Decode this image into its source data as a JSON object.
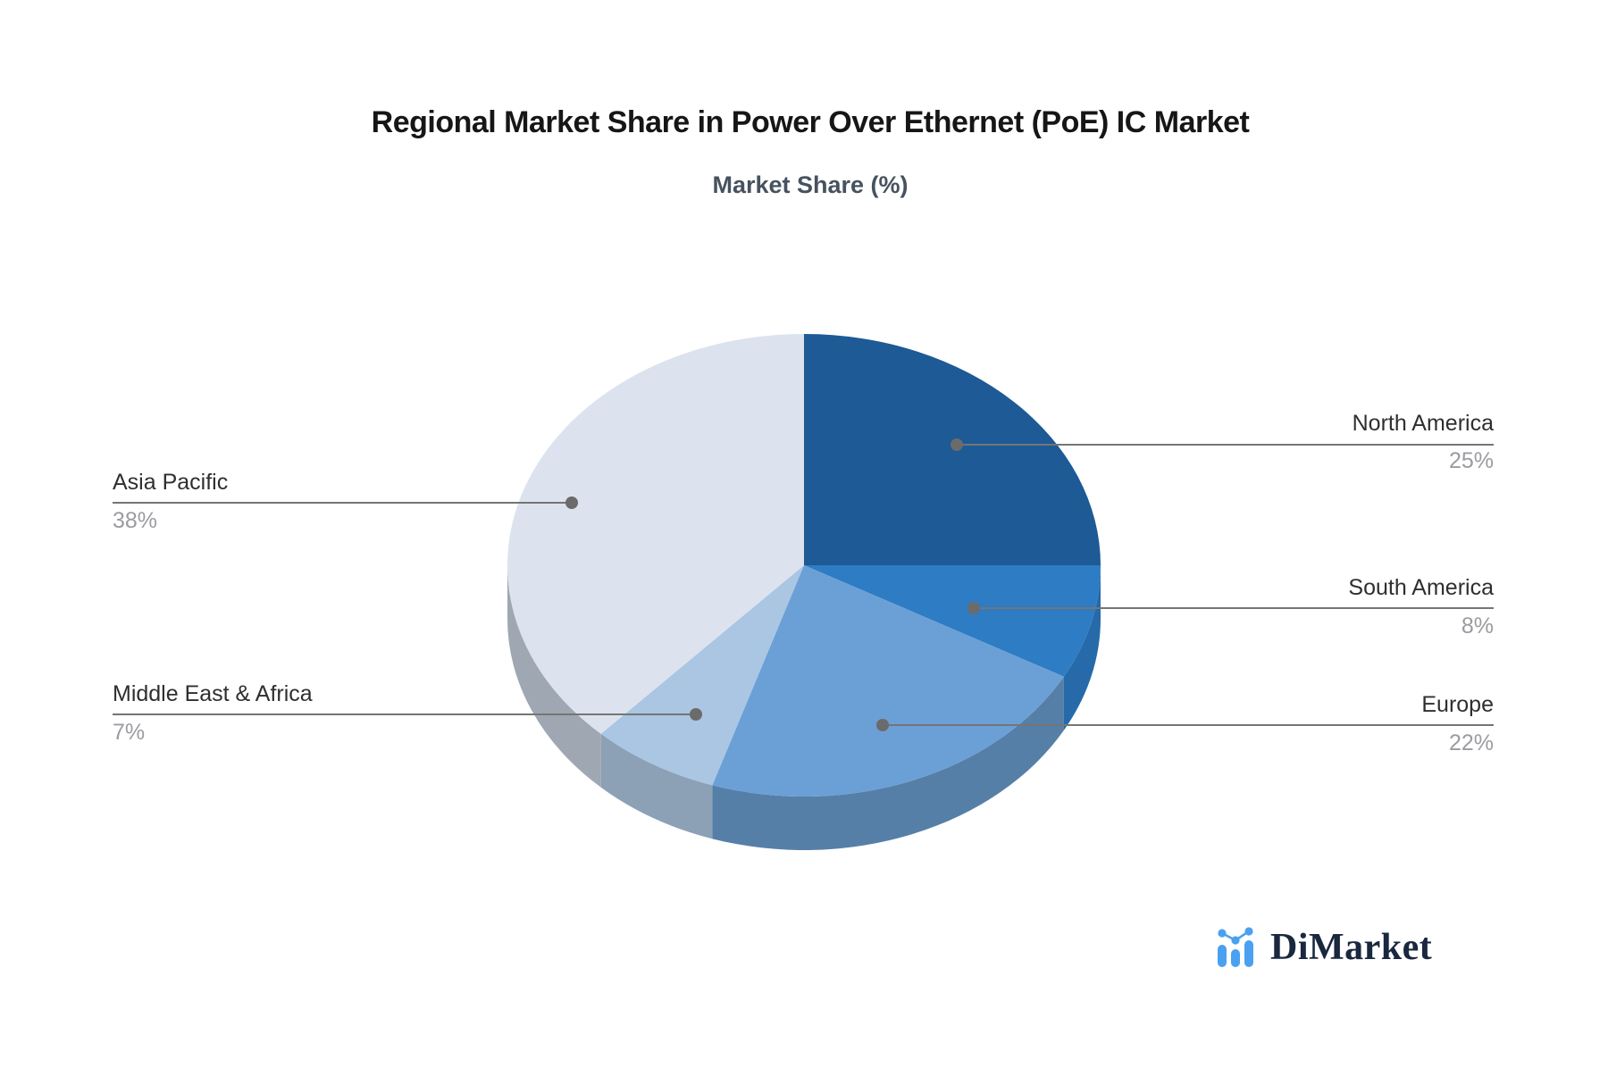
{
  "title": "Regional Market Share in Power Over Ethernet (PoE) IC Market",
  "subtitle": "Market Share (%)",
  "brand": {
    "name": "DiMarket"
  },
  "chart_data": {
    "type": "pie",
    "style": "3d",
    "title": "Regional Market Share in Power Over Ethernet (PoE) IC Market",
    "subtitle": "Market Share (%)",
    "unit": "%",
    "start_angle_deg": -90,
    "direction": "clockwise",
    "legend": "none",
    "categories": [
      "North America",
      "South America",
      "Europe",
      "Middle East & Africa",
      "Asia Pacific"
    ],
    "values": [
      25,
      8,
      22,
      7,
      38
    ],
    "slices": [
      {
        "label": "North America",
        "value": 25,
        "pct_text": "25%",
        "color": "#1d5a96",
        "side_color": "#174a7d"
      },
      {
        "label": "South America",
        "value": 8,
        "pct_text": "8%",
        "color": "#2e7cc4",
        "side_color": "#266aa9"
      },
      {
        "label": "Europe",
        "value": 22,
        "pct_text": "22%",
        "color": "#6ba0d6",
        "side_color": "#567fa7"
      },
      {
        "label": "Middle East & Africa",
        "value": 7,
        "pct_text": "7%",
        "color": "#aac6e2",
        "side_color": "#8ca1b6"
      },
      {
        "label": "Asia Pacific",
        "value": 38,
        "pct_text": "38%",
        "color": "#dce3ee",
        "side_color": "#9fa8b2"
      }
    ],
    "callout_line_color": "#757575",
    "callout_dot_color": "#6b6b6b",
    "label_color": "#2f2f2f",
    "pct_color": "#9b9ba1"
  }
}
